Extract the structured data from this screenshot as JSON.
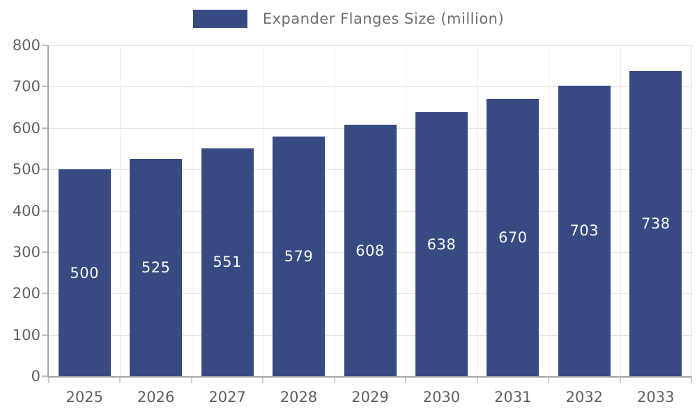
{
  "legend": {
    "label": "Expander Flanges Size (million)"
  },
  "chart_data": {
    "type": "bar",
    "title": "Expander Flanges Size (million)",
    "categories": [
      "2025",
      "2026",
      "2027",
      "2028",
      "2029",
      "2030",
      "2031",
      "2032",
      "2033"
    ],
    "values": [
      500,
      525,
      551,
      579,
      608,
      638,
      670,
      703,
      738
    ],
    "series": [
      {
        "name": "Expander Flanges Size (million)",
        "values": [
          500,
          525,
          551,
          579,
          608,
          638,
          670,
          703,
          738
        ]
      }
    ],
    "xlabel": "",
    "ylabel": "",
    "ylim": [
      0,
      800
    ],
    "yticks": [
      0,
      100,
      200,
      300,
      400,
      500,
      600,
      700,
      800
    ],
    "grid": true,
    "legend_position": "top-center",
    "bar_color": "#374b82",
    "value_label_color": "#fafafa",
    "axis_text_color": "#5f5f5f",
    "legend_text_color": "#6e6e6e",
    "gridline_color": "#e4e4e4",
    "axis_line_color": "#a5a5a5"
  }
}
